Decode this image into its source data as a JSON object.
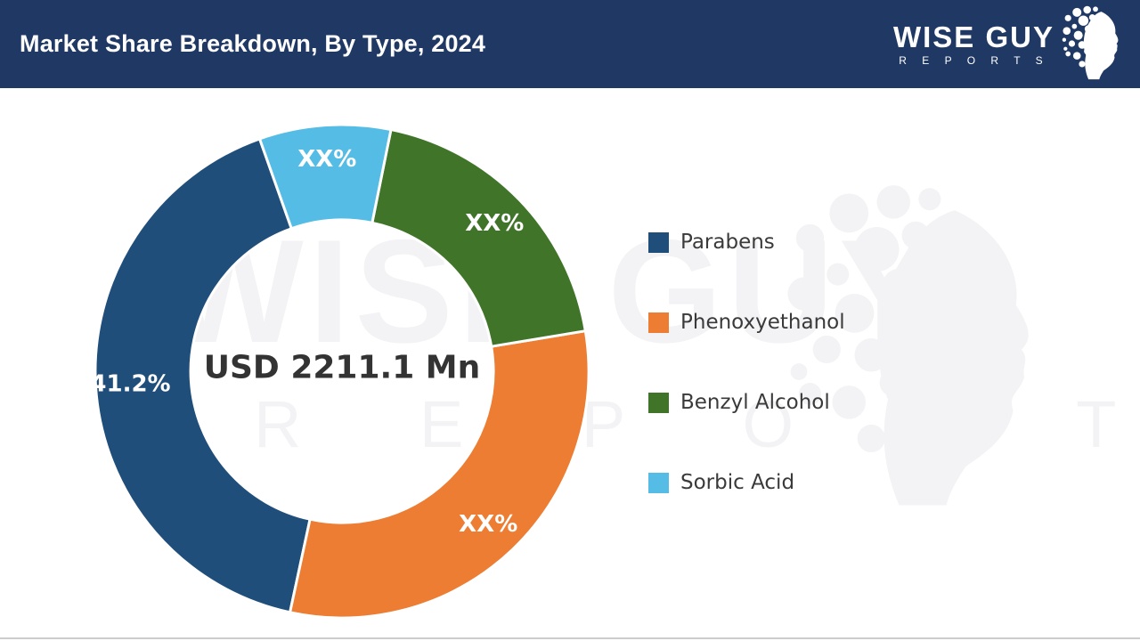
{
  "header": {
    "title": "Market Share Breakdown, By Type, 2024",
    "brand": {
      "line1": "WISE GUY",
      "line2": "R E P O R T S"
    }
  },
  "watermark": {
    "line1": "WISE GUY",
    "line2": "R E P O R T S"
  },
  "chart_data": {
    "type": "pie",
    "subtype": "donut",
    "title": "Market Share Breakdown, By Type, 2024",
    "center_label": "USD 2211.1 Mn",
    "start_angle_deg": 109.5,
    "direction": "counterclockwise",
    "legend_position": "right",
    "segments": [
      {
        "label": "Parabens",
        "value_pct": 41.2,
        "display": "41.2%",
        "color": "#204E7A"
      },
      {
        "label": "Phenoxyethanol",
        "value_pct": 31.0,
        "display": "XX%",
        "color": "#ED7D33"
      },
      {
        "label": "Benzyl Alcohol",
        "value_pct": 19.2,
        "display": "XX%",
        "color": "#407428"
      },
      {
        "label": "Sorbic Acid",
        "value_pct": 8.6,
        "display": "XX%",
        "color": "#55BCE6"
      }
    ]
  },
  "colors": {
    "header_bg": "#203864",
    "center_text": "#333333",
    "legend_text": "#3a3a3a",
    "watermark": "#f3f3f5",
    "footer_line": "#cccccc"
  }
}
